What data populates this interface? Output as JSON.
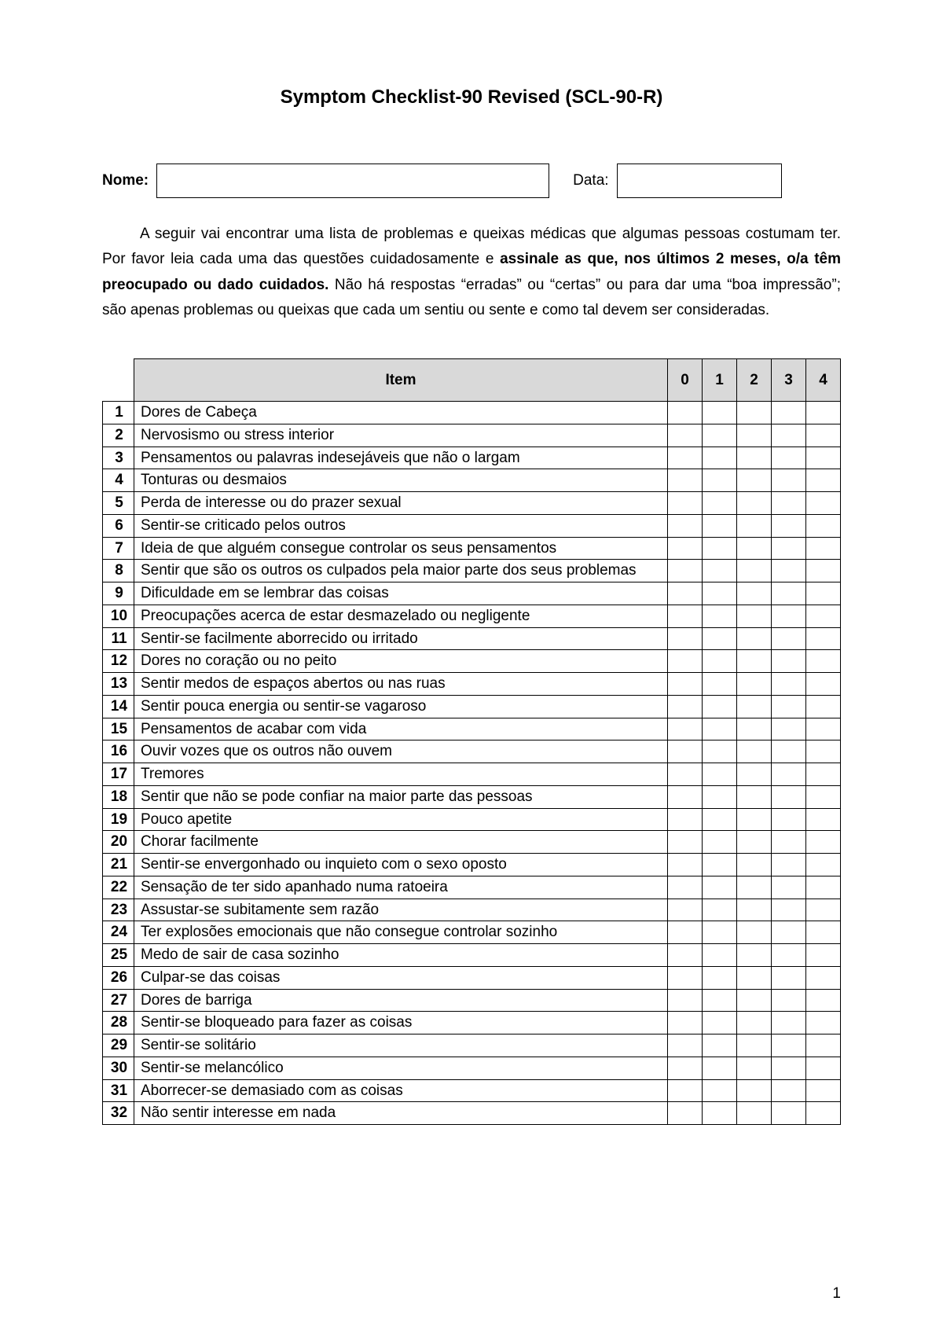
{
  "title": "Symptom Checklist-90 Revised (SCL-90-R)",
  "labels": {
    "nome": "Nome:",
    "data": "Data:"
  },
  "instructions": {
    "part1": "A seguir vai encontrar uma lista de problemas e queixas médicas que algumas pessoas costumam ter. Por favor leia cada uma das questões cuidadosamente e ",
    "bold": "assinale as que, nos últimos 2 meses, o/a têm preocupado ou dado cuidados.",
    "part2": " Não há respostas “erradas” ou “certas” ou para dar uma “boa impressão”; são apenas problemas ou queixas que cada um sentiu ou sente e como tal devem ser consideradas."
  },
  "table": {
    "header_item": "Item",
    "score_labels": [
      "0",
      "1",
      "2",
      "3",
      "4"
    ],
    "rows": [
      {
        "n": "1",
        "text": "Dores de Cabeça"
      },
      {
        "n": "2",
        "text": "Nervosismo ou stress interior"
      },
      {
        "n": "3",
        "text": "Pensamentos ou palavras indesejáveis que não o largam"
      },
      {
        "n": "4",
        "text": "Tonturas ou desmaios"
      },
      {
        "n": "5",
        "text": "Perda de interesse ou do prazer sexual"
      },
      {
        "n": "6",
        "text": "Sentir-se criticado pelos outros"
      },
      {
        "n": "7",
        "text": "Ideia de que alguém consegue controlar os seus pensamentos"
      },
      {
        "n": "8",
        "text": "Sentir que são os outros os culpados pela maior parte dos seus problemas"
      },
      {
        "n": "9",
        "text": "Dificuldade em se lembrar das coisas"
      },
      {
        "n": "10",
        "text": "Preocupações acerca de estar desmazelado ou negligente"
      },
      {
        "n": "11",
        "text": "Sentir-se facilmente aborrecido ou irritado"
      },
      {
        "n": "12",
        "text": "Dores no coração ou no peito"
      },
      {
        "n": "13",
        "text": "Sentir medos de espaços abertos ou nas ruas"
      },
      {
        "n": "14",
        "text": "Sentir pouca energia ou sentir-se vagaroso"
      },
      {
        "n": "15",
        "text": "Pensamentos de acabar com vida"
      },
      {
        "n": "16",
        "text": "Ouvir vozes que os outros não ouvem"
      },
      {
        "n": "17",
        "text": "Tremores"
      },
      {
        "n": "18",
        "text": "Sentir que não se pode confiar na maior parte das pessoas"
      },
      {
        "n": "19",
        "text": "Pouco apetite"
      },
      {
        "n": "20",
        "text": "Chorar facilmente"
      },
      {
        "n": "21",
        "text": "Sentir-se envergonhado ou inquieto com o sexo oposto"
      },
      {
        "n": "22",
        "text": "Sensação de ter sido apanhado numa ratoeira"
      },
      {
        "n": "23",
        "text": "Assustar-se subitamente sem razão"
      },
      {
        "n": "24",
        "text": "Ter explosões emocionais que não consegue controlar sozinho"
      },
      {
        "n": "25",
        "text": "Medo de sair de casa sozinho"
      },
      {
        "n": "26",
        "text": "Culpar-se das coisas"
      },
      {
        "n": "27",
        "text": "Dores de barriga"
      },
      {
        "n": "28",
        "text": "Sentir-se bloqueado para fazer as coisas"
      },
      {
        "n": "29",
        "text": "Sentir-se solitário"
      },
      {
        "n": "30",
        "text": "Sentir-se melancólico"
      },
      {
        "n": "31",
        "text": "Aborrecer-se demasiado com as coisas"
      },
      {
        "n": "32",
        "text": "Não sentir interesse em nada"
      }
    ]
  },
  "page_number": "1"
}
